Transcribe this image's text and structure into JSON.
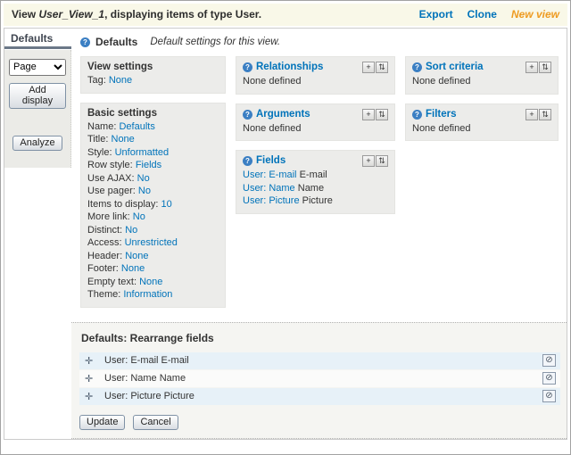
{
  "colors": {
    "link_blue": "#0073ba",
    "new_view_orange": "#ee9b21",
    "header_cream": "#f9f8e8",
    "help_icon_blue": "#3b7fc3",
    "row_highlight_blue": "#e7f1f8",
    "box_gray": "#ececea",
    "tab_underline": "#6b7888"
  },
  "icons": {
    "help": "?",
    "add": "+",
    "rearrange": "⇅",
    "drag": "✛",
    "remove": "⊘"
  },
  "header": {
    "title_prefix": "View ",
    "view_name": "User_View_1",
    "title_suffix": ", displaying items of type User.",
    "export_label": "Export",
    "clone_label": "Clone",
    "new_view_label": "New view"
  },
  "sidebar": {
    "tab_label": "Defaults",
    "display_selector_value": "Page",
    "add_display_label": "Add display",
    "analyze_label": "Analyze"
  },
  "main": {
    "section_title": "Defaults",
    "section_description": "Default settings for this view.",
    "view_settings": {
      "title": "View settings",
      "tag_label": "Tag:",
      "tag_value": "None"
    },
    "basic_settings": {
      "title": "Basic settings",
      "rows": [
        {
          "label": "Name:",
          "value": "Defaults"
        },
        {
          "label": "Title:",
          "value": "None"
        },
        {
          "label": "Style:",
          "value": "Unformatted"
        },
        {
          "label": "Row style:",
          "value": "Fields"
        },
        {
          "label": "Use AJAX:",
          "value": "No"
        },
        {
          "label": "Use pager:",
          "value": "No"
        },
        {
          "label": "Items to display:",
          "value": "10"
        },
        {
          "label": "More link:",
          "value": "No"
        },
        {
          "label": "Distinct:",
          "value": "No"
        },
        {
          "label": "Access:",
          "value": "Unrestricted"
        },
        {
          "label": "Header:",
          "value": "None"
        },
        {
          "label": "Footer:",
          "value": "None"
        },
        {
          "label": "Empty text:",
          "value": "None"
        },
        {
          "label": "Theme:",
          "value": "Information"
        }
      ]
    },
    "relationships": {
      "title": "Relationships",
      "empty": "None defined"
    },
    "arguments": {
      "title": "Arguments",
      "empty": "None defined"
    },
    "fields": {
      "title": "Fields",
      "items": [
        {
          "link": "User: E-mail",
          "text": "E-mail"
        },
        {
          "link": "User: Name",
          "text": "Name"
        },
        {
          "link": "User: Picture",
          "text": "Picture"
        }
      ]
    },
    "sort_criteria": {
      "title": "Sort criteria",
      "empty": "None defined"
    },
    "filters": {
      "title": "Filters",
      "empty": "None defined"
    }
  },
  "rearrange": {
    "title": "Defaults: Rearrange fields",
    "rows": [
      {
        "label": "User: E-mail E-mail"
      },
      {
        "label": "User: Name Name"
      },
      {
        "label": "User: Picture Picture"
      }
    ],
    "update_label": "Update",
    "cancel_label": "Cancel"
  }
}
